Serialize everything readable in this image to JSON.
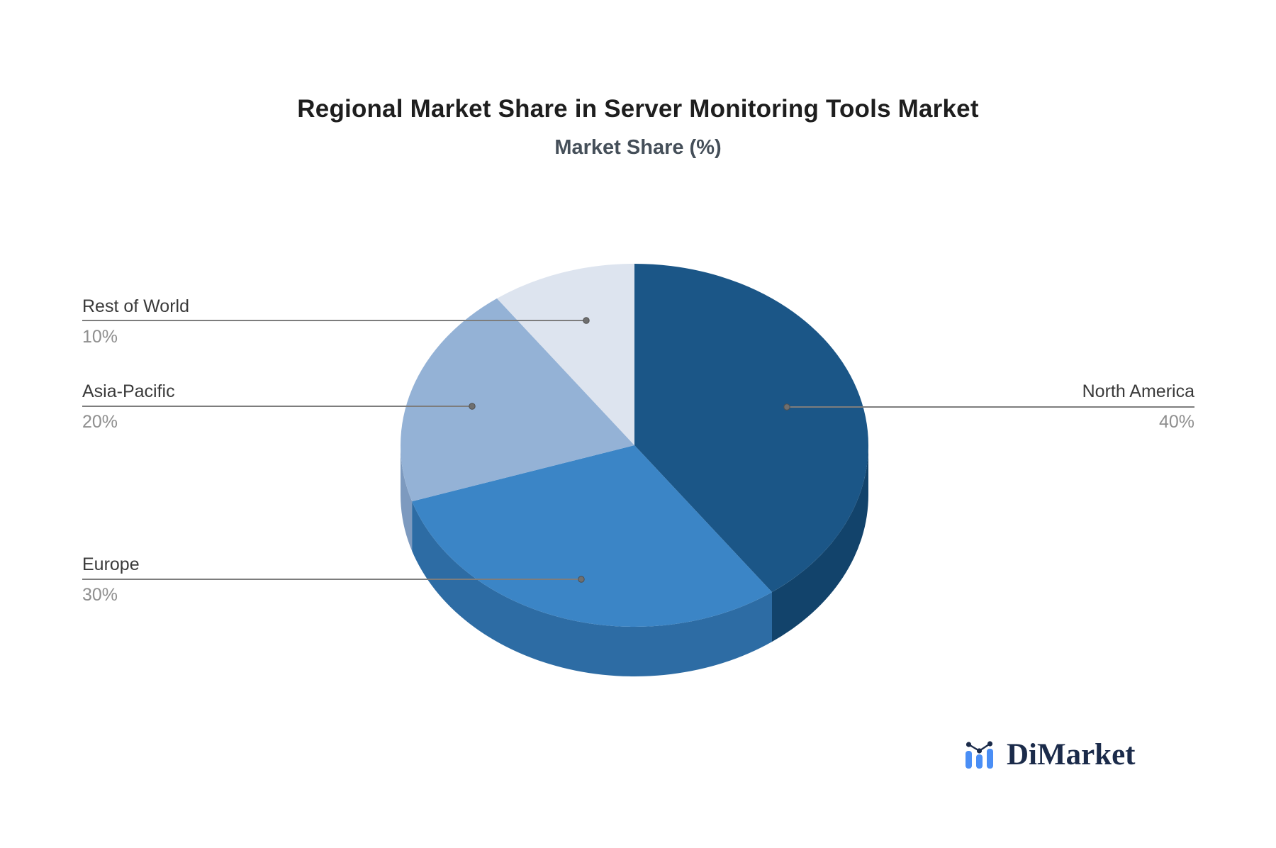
{
  "chart_data": {
    "type": "pie",
    "title": "Regional Market Share in Server Monitoring Tools Market",
    "subtitle": "Market Share (%)",
    "unit": "%",
    "start_angle_deg": 0,
    "direction": "clockwise",
    "effect": "3d",
    "legend": "none",
    "slices": [
      {
        "label": "North America",
        "value": 40,
        "pct": "40%",
        "color": "#1b5687",
        "side_color": "#12436b"
      },
      {
        "label": "Europe",
        "value": 30,
        "pct": "30%",
        "color": "#3b85c6",
        "side_color": "#2d6ca4"
      },
      {
        "label": "Asia-Pacific",
        "value": 20,
        "pct": "20%",
        "color": "#94b2d6",
        "side_color": "#7d9abf"
      },
      {
        "label": "Rest of World",
        "value": 10,
        "pct": "10%",
        "color": "#dde4ef",
        "side_color": "#c3cede"
      }
    ],
    "label_style": {
      "leader_line_color": "#7d7d7d",
      "leader_dot_color": "#6f6f6f",
      "name_color": "#3a3a3a",
      "value_color": "#8f8f8f"
    }
  },
  "branding": {
    "logo_text": "DiMarket",
    "logo_icon": "bar-chart-trend-icon",
    "logo_text_color": "#1b2b4a",
    "logo_accent_color": "#4a8ef5"
  }
}
